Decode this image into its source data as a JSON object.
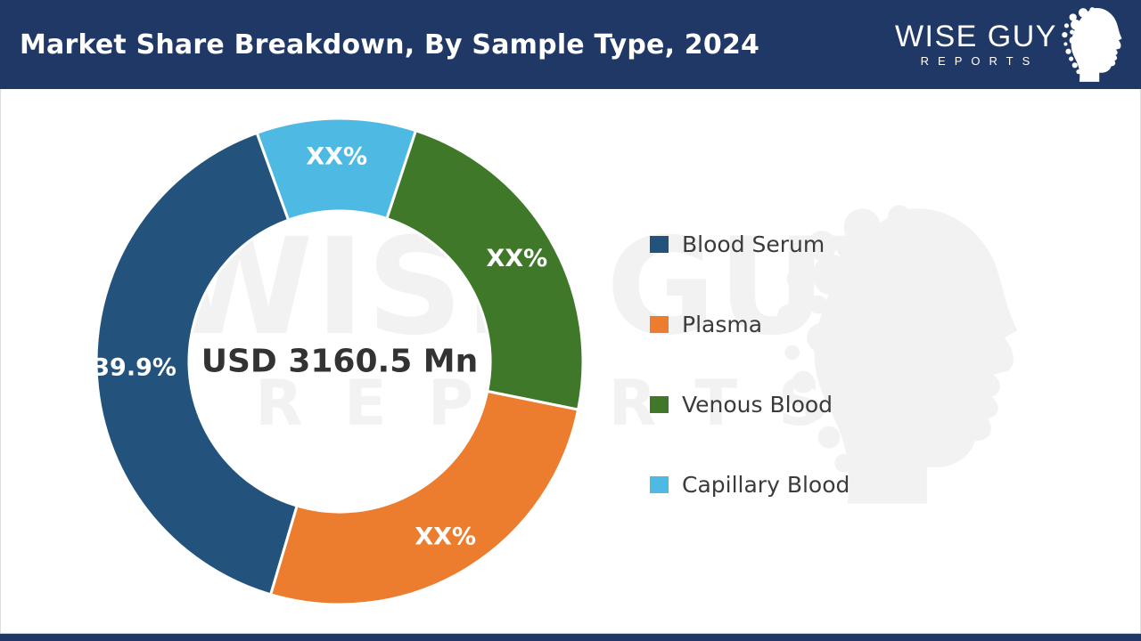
{
  "header": {
    "title": "Market Share Breakdown, By Sample Type, 2024",
    "logo": {
      "line1": "WISE GUY",
      "line2": "REPORTS"
    }
  },
  "watermark": {
    "line1": "WISE GUY",
    "line2": "REPORTS"
  },
  "chart_data": {
    "type": "pie",
    "subtype": "donut",
    "title": "Market Share Breakdown, By Sample Type, 2024",
    "center_label": "USD 3160.5 Mn",
    "start_angle_deg": -19.9,
    "direction": "counterclockwise",
    "legend_position": "right",
    "slices": [
      {
        "label": "Blood Serum",
        "value_pct": 39.9,
        "display": "39.9%",
        "color": "#23527C"
      },
      {
        "label": "Plasma",
        "value_pct": 26.4,
        "display": "XX%",
        "color": "#ED7D2E"
      },
      {
        "label": "Venous Blood",
        "value_pct": 23.1,
        "display": "XX%",
        "color": "#3F7829"
      },
      {
        "label": "Capillary Blood",
        "value_pct": 10.6,
        "display": "XX%",
        "color": "#4EBAE4"
      }
    ]
  },
  "theme": {
    "header_bg": "#1F3866",
    "footer_bg": "#1F3866",
    "title_color": "#FFFFFF",
    "legend_text_color": "#3B3B3B",
    "center_label_color": "#333333",
    "watermark_color": "#F2F2F2"
  }
}
